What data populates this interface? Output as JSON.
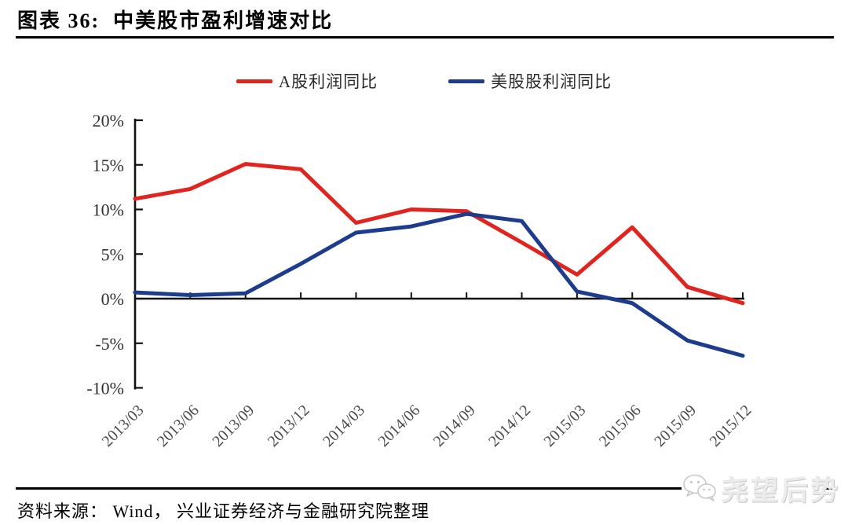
{
  "title": "图表 36:  中美股市盈利增速对比",
  "source": {
    "text": "资料来源： Wind， 兴业证券经济与金融研究院整理"
  },
  "watermark": {
    "text": "尧望后势",
    "icon": "wechat-icon",
    "color": "#ececec"
  },
  "colors": {
    "a_share_line": "#e02420",
    "us_stock_line": "#1e3c8c",
    "axis": "#111111",
    "y_tick_label": "#303030",
    "x_tick_label": "#4a4a4a"
  },
  "chart_data": {
    "type": "line",
    "title": "中美股市盈利增速对比",
    "categories": [
      "2013/03",
      "2013/06",
      "2013/09",
      "2013/12",
      "2014/03",
      "2014/06",
      "2014/09",
      "2014/12",
      "2015/03",
      "2015/06",
      "2015/09",
      "2015/12"
    ],
    "series": [
      {
        "name": "A股利润同比",
        "color": "#e02420",
        "values": [
          11.2,
          12.3,
          15.1,
          14.5,
          8.5,
          10.0,
          9.8,
          6.3,
          2.7,
          8.0,
          1.3,
          -0.5
        ]
      },
      {
        "name": "美股股利润同比",
        "color": "#1e3c8c",
        "values": [
          0.7,
          0.4,
          0.6,
          3.9,
          7.4,
          8.1,
          9.5,
          8.7,
          0.8,
          -0.5,
          -4.7,
          -6.4
        ]
      }
    ],
    "y_tick_values": [
      20,
      15,
      10,
      5,
      0,
      -5,
      -10
    ],
    "y_tick_labels": [
      "20%",
      "15%",
      "10%",
      "5%",
      "0%",
      "-5%",
      "-10%"
    ],
    "ylim": [
      -10,
      20
    ],
    "xlabel": "",
    "ylabel": "",
    "grid": false,
    "legend_position": "top",
    "x_labels_rotation_deg": -45
  }
}
